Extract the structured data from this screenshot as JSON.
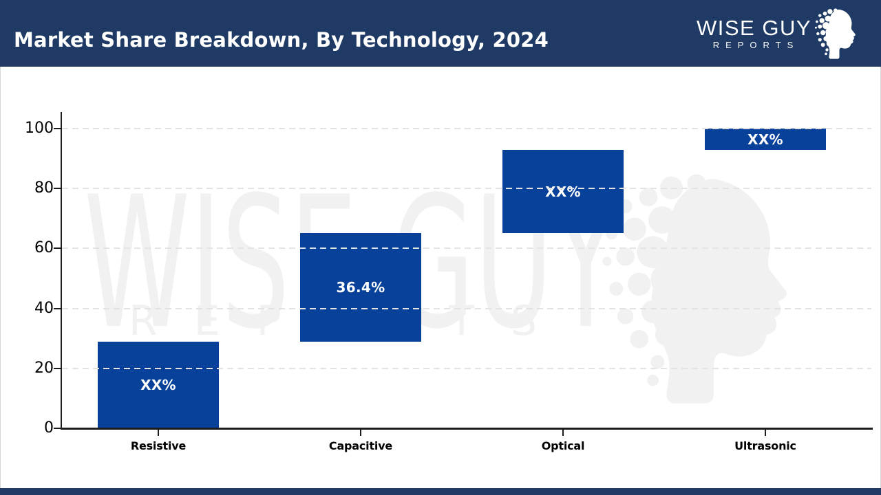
{
  "header": {
    "title": "Market Share Breakdown, By Technology, 2024"
  },
  "logo": {
    "name": "WISE GUY",
    "subtitle": "REPORTS",
    "head_icon": "dotted-head-profile"
  },
  "watermark": {
    "line1": "WISE GUY",
    "line2": "REPORTS"
  },
  "colors": {
    "header_bg": "#1f3a64",
    "footer_bg": "#1f3a64",
    "bar": "#07419a",
    "axis": "#1c1c1c",
    "gridline": "#e3e3e3",
    "bar_label": "#ffffff",
    "watermark": "#f1f1f2"
  },
  "chart_data": {
    "type": "bar",
    "subtype": "waterfall-floating-bars",
    "title": "Market Share Breakdown, By Technology, 2024",
    "xlabel": "",
    "ylabel": "",
    "ylim": [
      0,
      100
    ],
    "yticks": [
      0,
      20,
      40,
      60,
      80,
      100
    ],
    "grid": "dashed-horizontal",
    "legend": "none",
    "categories": [
      "Resistive",
      "Capacitive",
      "Optical",
      "Ultrasonic"
    ],
    "series": [
      {
        "name": "Market share (%)",
        "segments": [
          {
            "category": "Resistive",
            "start": 0,
            "end": 28.8,
            "label": "XX%"
          },
          {
            "category": "Capacitive",
            "start": 28.8,
            "end": 65.2,
            "label": "36.4%"
          },
          {
            "category": "Optical",
            "start": 65.2,
            "end": 92.8,
            "label": "XX%"
          },
          {
            "category": "Ultrasonic",
            "start": 92.8,
            "end": 100,
            "label": "XX%"
          }
        ]
      }
    ]
  }
}
